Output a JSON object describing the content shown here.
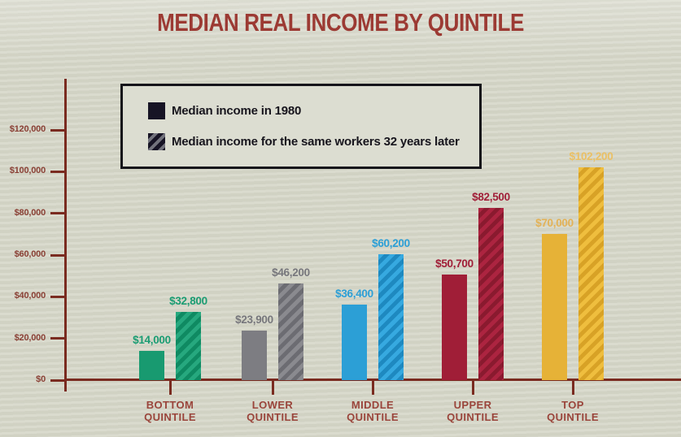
{
  "title": "MEDIAN REAL INCOME BY QUINTILE",
  "legend": {
    "items": [
      {
        "label": "Median income in 1980",
        "swatch": "solid"
      },
      {
        "label": "Median income for the same workers 32 years later",
        "swatch": "striped"
      }
    ]
  },
  "chart_data": {
    "type": "bar",
    "title": "MEDIAN REAL INCOME BY QUINTILE",
    "categories": [
      "BOTTOM QUINTILE",
      "LOWER QUINTILE",
      "MIDDLE QUINTILE",
      "UPPER QUINTILE",
      "TOP QUINTILE"
    ],
    "series": [
      {
        "name": "Median income in 1980",
        "pattern": "solid",
        "values": [
          14000,
          23900,
          36400,
          50700,
          70000
        ],
        "data_labels": [
          "$14,000",
          "$23,900",
          "$36,400",
          "$50,700",
          "$70,000"
        ]
      },
      {
        "name": "Median income for the same workers 32 years later",
        "pattern": "striped",
        "values": [
          32800,
          46200,
          60200,
          82500,
          102200
        ],
        "data_labels": [
          "$32,800",
          "$46,200",
          "$60,200",
          "$82,500",
          "$102,200"
        ]
      }
    ],
    "y_ticks": [
      {
        "value": 0,
        "label": "$0"
      },
      {
        "value": 20000,
        "label": "$20,000"
      },
      {
        "value": 40000,
        "label": "$40,000"
      },
      {
        "value": 60000,
        "label": "$60,000"
      },
      {
        "value": 80000,
        "label": "$80,000"
      },
      {
        "value": 100000,
        "label": "$100,000"
      },
      {
        "value": 120000,
        "label": "$120,000"
      }
    ],
    "ylim": [
      0,
      130000
    ],
    "xlabel": "",
    "ylabel": "",
    "grid": false,
    "legend_position": "top-left-inside",
    "quintile_colors": [
      {
        "solid": "#189A70",
        "stripe_light": "#26A87E",
        "stripe_dark": "#0F8A62",
        "label_solid": "#1A9C72",
        "label_striped": "#1A9C72"
      },
      {
        "solid": "#7D7D82",
        "stripe_light": "#8A8A8F",
        "stripe_dark": "#6C6C72",
        "label_solid": "#77777C",
        "label_striped": "#77777C"
      },
      {
        "solid": "#2C9FD6",
        "stripe_light": "#36A9E0",
        "stripe_dark": "#1E89C0",
        "label_solid": "#2C9FD6",
        "label_striped": "#2C9FD6"
      },
      {
        "solid": "#A01E37",
        "stripe_light": "#AC2440",
        "stripe_dark": "#8A1A2F",
        "label_solid": "#A01E37",
        "label_striped": "#A01E37"
      },
      {
        "solid": "#E6B237",
        "stripe_light": "#EFBE3E",
        "stripe_dark": "#D8A226",
        "label_solid": "#E3B257",
        "label_striped": "#EAC065"
      }
    ]
  },
  "colors": {
    "background": "#D6D7C9",
    "axis": "#7A2B20",
    "tick_label": "#8A4035",
    "category_label": "#9A453B",
    "title": "#9C3A33",
    "legend_border": "#15141A",
    "legend_bg": "#DCDDD1",
    "legend_swatch_dark": "#171425",
    "legend_swatch_stripe_light": "#73737D"
  }
}
